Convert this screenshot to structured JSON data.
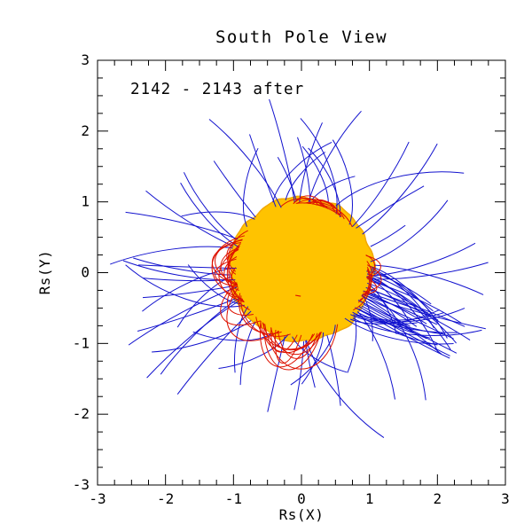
{
  "chart_data": {
    "type": "line",
    "title": "South Pole View",
    "annotation": "2142 - 2143 after",
    "xlabel": "Rs(X)",
    "ylabel": "Rs(Y)",
    "xlim": [
      -3,
      3
    ],
    "ylim": [
      -3,
      3
    ],
    "xticks": [
      -3,
      -2,
      -1,
      0,
      1,
      2,
      3
    ],
    "yticks": [
      -3,
      -2,
      -1,
      0,
      1,
      2,
      3
    ],
    "minor_tick_step": 0.25,
    "grid": false,
    "background": "#FFFFFF",
    "axis_color": "#000000",
    "sun": {
      "center": [
        0,
        0.05
      ],
      "radius": 1.06,
      "color": "#FFC300",
      "edge_color": "#F2A800"
    },
    "center_mark": [
      -0.05,
      -0.32
    ],
    "field_lines": {
      "seed": 1373,
      "open": {
        "color": "#1212CE",
        "groups": [
          {
            "name": "all-around",
            "count": 55,
            "angle_deg": [
              0,
              360
            ],
            "drift_deg": 37,
            "length": [
              0.5,
              1.8
            ]
          },
          {
            "name": "right-fan",
            "count": 34,
            "angle_deg": [
              -49,
              11
            ],
            "converge_deg": -23,
            "length": [
              0.8,
              1.8
            ]
          },
          {
            "name": "left-spray",
            "count": 10,
            "angle_deg": [
              151,
              209
            ],
            "drift_deg": 17,
            "length": [
              1.0,
              1.85
            ]
          }
        ]
      },
      "closed": {
        "color": "#DD1100",
        "clusters": [
          {
            "angle_deg": 180,
            "count": 13,
            "span_deg": [
              9,
              32
            ],
            "peak": [
              1.08,
              1.55
            ]
          },
          {
            "angle_deg": 264,
            "count": 10,
            "span_deg": [
              11,
              34
            ],
            "peak": [
              1.15,
              1.75
            ]
          },
          {
            "angle_deg": 77,
            "count": 10,
            "span_deg": [
              6,
              26
            ],
            "peak": [
              1.0,
              1.14
            ]
          },
          {
            "angle_deg": -9,
            "count": 8,
            "span_deg": [
              7,
              23
            ],
            "peak": [
              1.05,
              1.3
            ]
          },
          {
            "angle_deg": 221,
            "count": 5,
            "span_deg": [
              11,
              29
            ],
            "peak": [
              1.2,
              1.6
            ]
          }
        ]
      }
    }
  }
}
